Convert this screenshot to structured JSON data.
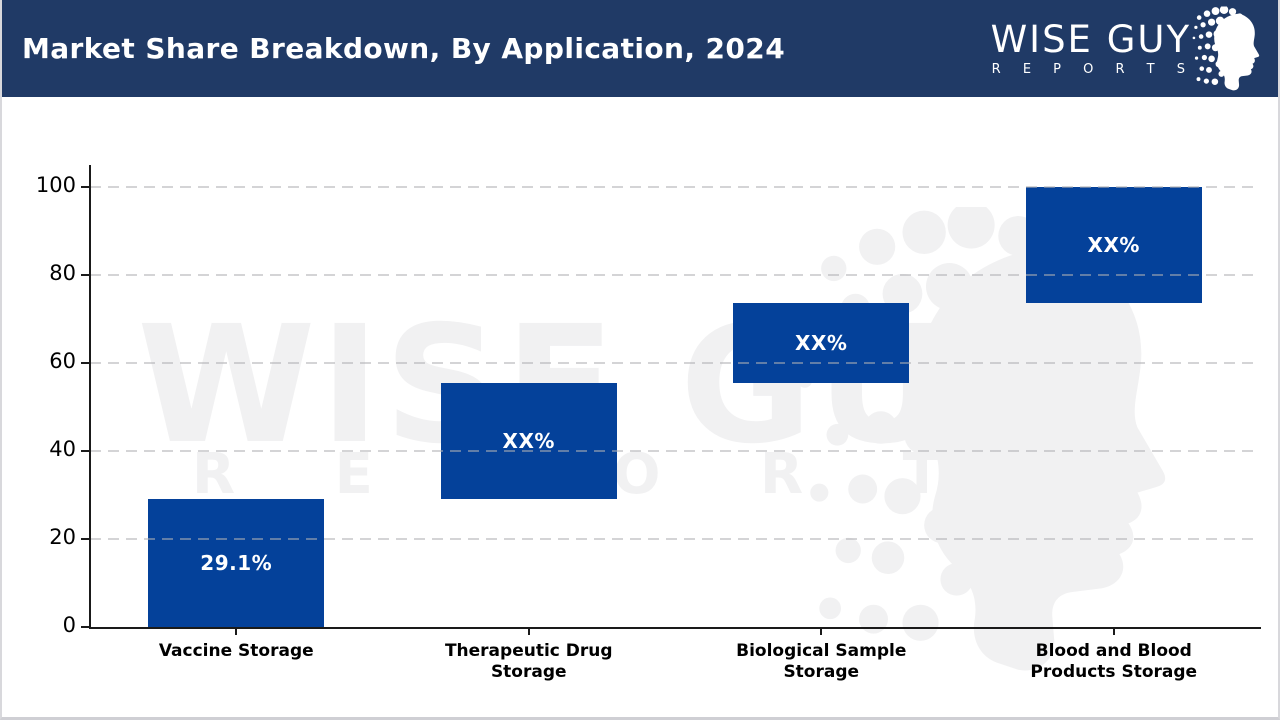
{
  "header": {
    "title": "Market Share Breakdown, By Application, 2024",
    "bg_color": "#203a66",
    "logo": {
      "line1": "WISE GUY",
      "line2": "R E P O R T S"
    }
  },
  "watermark": {
    "line1": "WISE GU",
    "line2": "R E P O R T S"
  },
  "chart_data": {
    "type": "bar",
    "subtype": "waterfall",
    "title": "Market Share Breakdown, By Application, 2024",
    "xlabel": "",
    "ylabel": "",
    "categories": [
      "Vaccine Storage",
      "Therapeutic Drug Storage",
      "Biological Sample Storage",
      "Blood and Blood Products Storage"
    ],
    "segments": [
      {
        "start": 0,
        "end": 29.1,
        "label": "29.1%"
      },
      {
        "start": 29.1,
        "end": 55.5,
        "label": "XX%"
      },
      {
        "start": 55.5,
        "end": 73.7,
        "label": "XX%"
      },
      {
        "start": 73.7,
        "end": 100,
        "label": "XX%"
      }
    ],
    "yticks": [
      0,
      20,
      40,
      60,
      80,
      100
    ],
    "ylim": [
      0,
      105
    ],
    "grid": "horizontal-dashed",
    "legend": "none",
    "bar_color": "#04419a",
    "bar_label_color": "#ffffff",
    "axis_color": "#1a1a1a",
    "gridline_color": "#d9d9d9"
  }
}
